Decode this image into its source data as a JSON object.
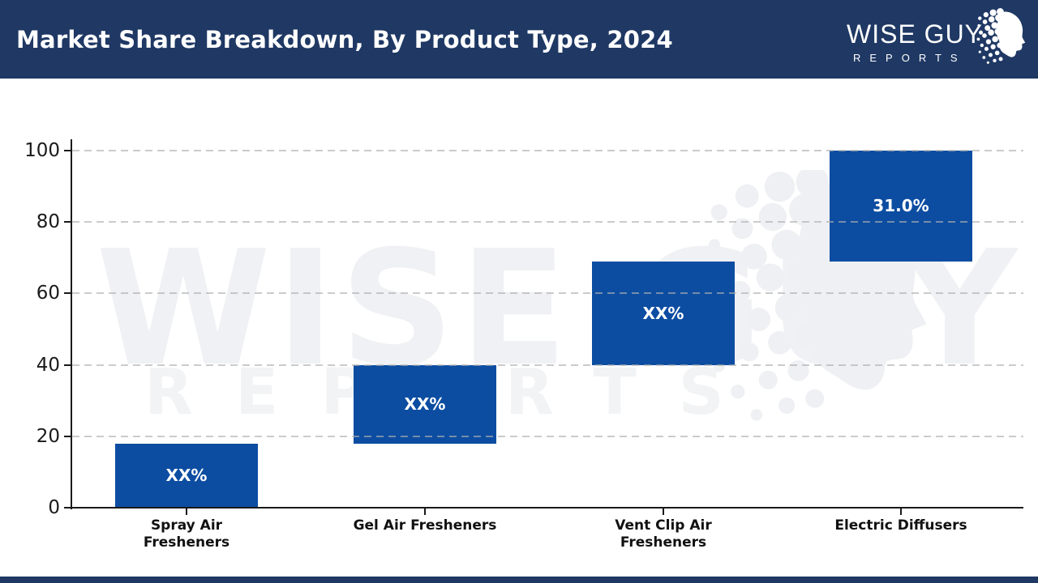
{
  "header": {
    "bg_color": "#1f3864",
    "title": "Market Share Breakdown, By Product Type, 2024",
    "logo": {
      "wordmark": "WISE GUY",
      "subtext": "REPORTS"
    }
  },
  "watermark": {
    "wordmark": "WISE GUY",
    "subtext": "REPORTS"
  },
  "footer": {
    "bg_color": "#1f3864"
  },
  "chart_data": {
    "type": "bar",
    "subtype": "waterfall (floating stacked-range bars)",
    "title": "Market Share Breakdown, By Product Type, 2024",
    "categories": [
      "Spray Air\nFresheners",
      "Gel Air Fresheners",
      "Vent Clip Air\nFresheners",
      "Electric Diffusers"
    ],
    "segments": [
      {
        "category": "Spray Air Fresheners",
        "start": 0,
        "end": 18,
        "value": 18,
        "value_label": "XX%"
      },
      {
        "category": "Gel Air Fresheners",
        "start": 18,
        "end": 40,
        "value": 22,
        "value_label": "XX%"
      },
      {
        "category": "Vent Clip Air Fresheners",
        "start": 40,
        "end": 69,
        "value": 29,
        "value_label": "XX%"
      },
      {
        "category": "Electric Diffusers",
        "start": 69,
        "end": 100,
        "value": 31,
        "value_label": "31.0%"
      }
    ],
    "y_ticks": [
      0,
      20,
      40,
      60,
      80,
      100
    ],
    "ylim": [
      0,
      103
    ],
    "xlabel": "",
    "ylabel": "",
    "legend": null,
    "grid": "horizontal dashed, drawn over bars",
    "bar_color": "#0c4da2",
    "bar_label_color": "#ffffff",
    "axis_color": "#1a1a1a",
    "watermark_color": "#f0f1f4"
  }
}
